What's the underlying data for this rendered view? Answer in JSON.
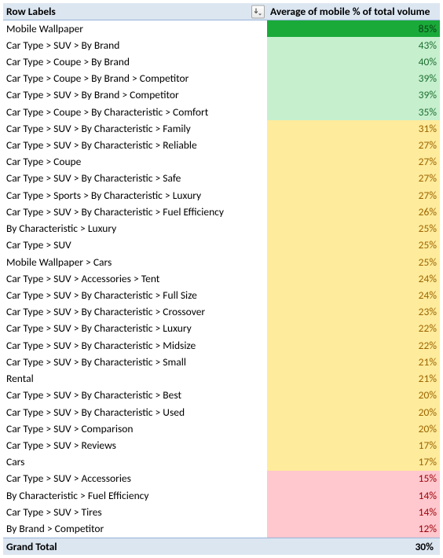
{
  "header": {
    "left": "Row Labels",
    "right": "Average of mobile % of total volume"
  },
  "colors": {
    "header_bg": "#dce6f1",
    "header_border": "#95b3d7",
    "text": "#000000"
  },
  "tiers": {
    "high": {
      "bg": "#1aaa3a",
      "threshold_min": 85
    },
    "good": {
      "bg": "#c6efce",
      "text": "#1e7030"
    },
    "mid": {
      "bg": "#ffeb9c",
      "text": "#9c6500"
    },
    "low": {
      "bg": "#ffc7ce",
      "text": "#9c0006"
    }
  },
  "rows": [
    {
      "label": "Mobile Wallpaper",
      "value": "85%",
      "bg": "#1aaa3a",
      "fg": "#0a3f15"
    },
    {
      "label": "Car Type > SUV > By Brand",
      "value": "43%",
      "bg": "#c6efce",
      "fg": "#1e7030"
    },
    {
      "label": "Car Type > Coupe > By Brand",
      "value": "40%",
      "bg": "#c6efce",
      "fg": "#1e7030"
    },
    {
      "label": "Car Type > Coupe > By Brand > Competitor",
      "value": "39%",
      "bg": "#c6efce",
      "fg": "#1e7030"
    },
    {
      "label": "Car Type > SUV > By Brand > Competitor",
      "value": "39%",
      "bg": "#c6efce",
      "fg": "#1e7030"
    },
    {
      "label": "Car Type > Coupe > By Characteristic > Comfort",
      "value": "35%",
      "bg": "#c6efce",
      "fg": "#1e7030"
    },
    {
      "label": "Car Type > SUV > By Characteristic > Family",
      "value": "31%",
      "bg": "#ffeb9c",
      "fg": "#9c6500"
    },
    {
      "label": "Car Type > SUV > By Characteristic > Reliable",
      "value": "27%",
      "bg": "#ffeb9c",
      "fg": "#9c6500"
    },
    {
      "label": "Car Type > Coupe",
      "value": "27%",
      "bg": "#ffeb9c",
      "fg": "#9c6500"
    },
    {
      "label": "Car Type > SUV > By Characteristic > Safe",
      "value": "27%",
      "bg": "#ffeb9c",
      "fg": "#9c6500"
    },
    {
      "label": "Car Type > Sports > By Characteristic > Luxury",
      "value": "27%",
      "bg": "#ffeb9c",
      "fg": "#9c6500"
    },
    {
      "label": "Car Type > SUV > By Characteristic > Fuel Efficiency",
      "value": "26%",
      "bg": "#ffeb9c",
      "fg": "#9c6500"
    },
    {
      "label": "By Characteristic > Luxury",
      "value": "25%",
      "bg": "#ffeb9c",
      "fg": "#9c6500"
    },
    {
      "label": "Car Type > SUV",
      "value": "25%",
      "bg": "#ffeb9c",
      "fg": "#9c6500"
    },
    {
      "label": "Mobile Wallpaper > Cars",
      "value": "25%",
      "bg": "#ffeb9c",
      "fg": "#9c6500"
    },
    {
      "label": "Car Type > SUV > Accessories > Tent",
      "value": "24%",
      "bg": "#ffeb9c",
      "fg": "#9c6500"
    },
    {
      "label": "Car Type > SUV > By Characteristic > Full Size",
      "value": "24%",
      "bg": "#ffeb9c",
      "fg": "#9c6500"
    },
    {
      "label": "Car Type > SUV > By Characteristic > Crossover",
      "value": "23%",
      "bg": "#ffeb9c",
      "fg": "#9c6500"
    },
    {
      "label": "Car Type > SUV > By Characteristic > Luxury",
      "value": "22%",
      "bg": "#ffeb9c",
      "fg": "#9c6500"
    },
    {
      "label": "Car Type > SUV > By Characteristic > Midsize",
      "value": "22%",
      "bg": "#ffeb9c",
      "fg": "#9c6500"
    },
    {
      "label": "Car Type > SUV > By Characteristic > Small",
      "value": "21%",
      "bg": "#ffeb9c",
      "fg": "#9c6500"
    },
    {
      "label": "Rental",
      "value": "21%",
      "bg": "#ffeb9c",
      "fg": "#9c6500"
    },
    {
      "label": "Car Type > SUV > By Characteristic > Best",
      "value": "20%",
      "bg": "#ffeb9c",
      "fg": "#9c6500"
    },
    {
      "label": "Car Type > SUV > By Characteristic > Used",
      "value": "20%",
      "bg": "#ffeb9c",
      "fg": "#9c6500"
    },
    {
      "label": "Car Type > SUV > Comparison",
      "value": "20%",
      "bg": "#ffeb9c",
      "fg": "#9c6500"
    },
    {
      "label": "Car Type > SUV > Reviews",
      "value": "17%",
      "bg": "#ffeb9c",
      "fg": "#9c6500"
    },
    {
      "label": "Cars",
      "value": "17%",
      "bg": "#ffeb9c",
      "fg": "#9c6500"
    },
    {
      "label": "Car Type > SUV > Accessories",
      "value": "15%",
      "bg": "#ffc7ce",
      "fg": "#9c0006"
    },
    {
      "label": "By Characteristic > Fuel Efficiency",
      "value": "14%",
      "bg": "#ffc7ce",
      "fg": "#9c0006"
    },
    {
      "label": "Car Type > SUV > Tires",
      "value": "14%",
      "bg": "#ffc7ce",
      "fg": "#9c0006"
    },
    {
      "label": "By Brand > Competitor",
      "value": "12%",
      "bg": "#ffc7ce",
      "fg": "#9c0006"
    }
  ],
  "footer": {
    "label": "Grand Total",
    "value": "30%"
  }
}
